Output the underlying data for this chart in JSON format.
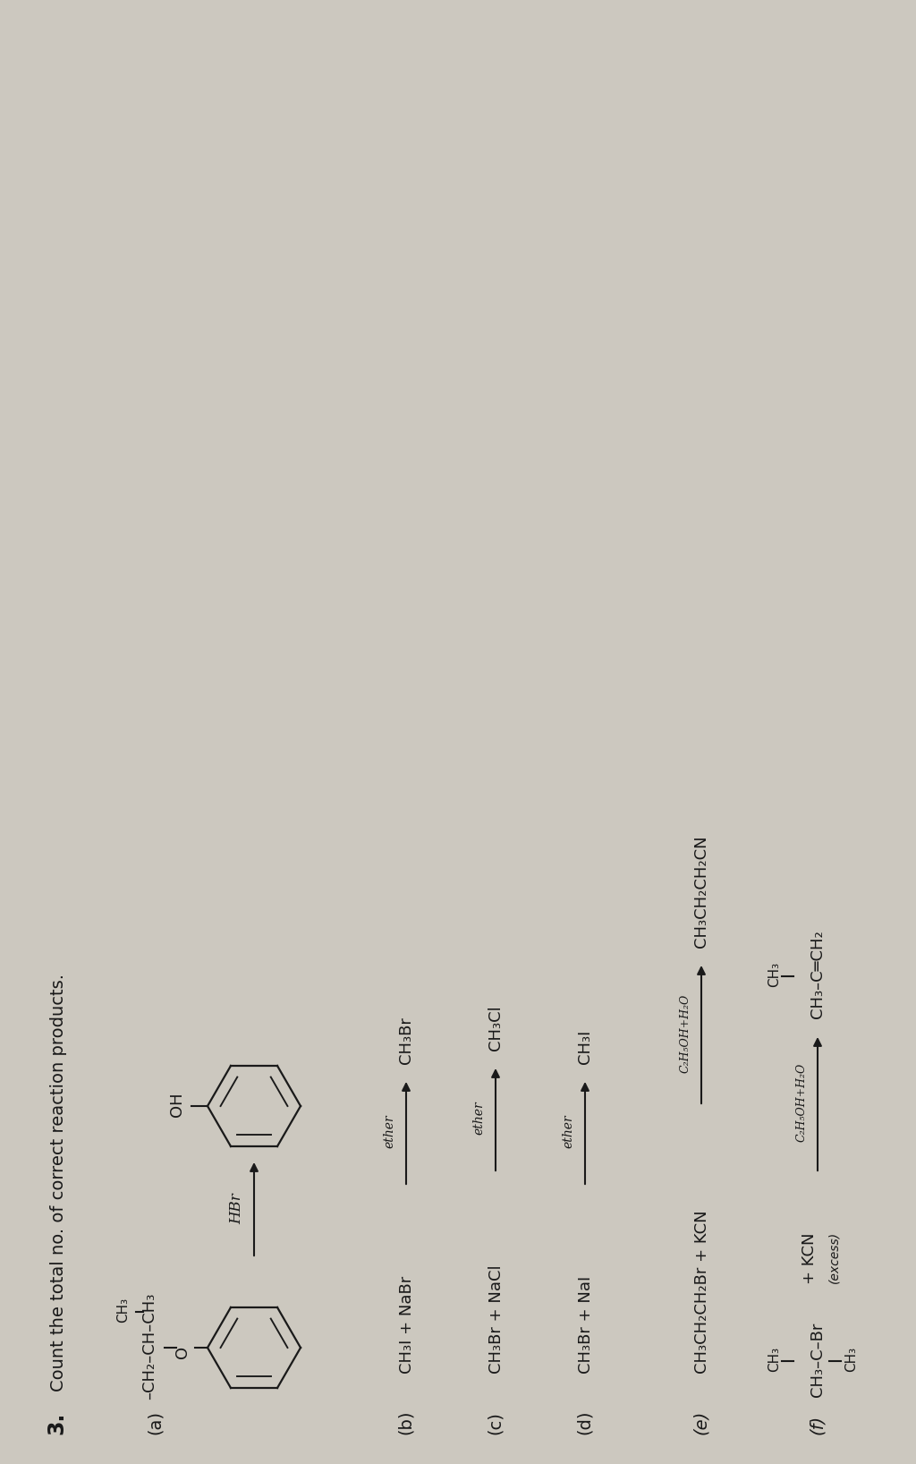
{
  "bg_color": "#ccc8bf",
  "text_color": "#1a1a1a",
  "fig_width": 10.24,
  "fig_height": 16.36,
  "title_num": "3.",
  "title_text": "Count the total no. of correct reaction products.",
  "label_a": "(a)",
  "label_b": "(b)",
  "label_c": "(c)",
  "label_d": "(d)",
  "label_e": "(e)",
  "label_f": "(f)",
  "b_reactant": "CH₃I + NaBr",
  "b_reagent": "ether",
  "b_product": "CH₃Br",
  "c_reactant": "CH₃Br + NaCl",
  "c_reagent": "ether",
  "c_product": "CH₃Cl",
  "d_reactant": "CH₃Br + NaI",
  "d_reagent": "ether",
  "d_product": "CH₃I",
  "e_reactant": "CH₃CH₂CH₂Br + KCN",
  "e_reagent": "C₂H₅OH+H₂O",
  "e_product": "CH₃CH₂CH₂CN",
  "f_r1": "CH₃",
  "f_r2": "CH₃–C–Br",
  "f_r3": "CH₃",
  "f_reagent1": "+ KCN",
  "f_reagent2": "(excess)",
  "f_cond": "C₂H₅OH+H₂O",
  "f_p1": "CH₃",
  "f_p2": "CH₃–C═CH₂",
  "f_p3": "CH₃",
  "a_chain1": "CH₃",
  "a_chain2": "CH₂–CH–CH₃",
  "a_reagent": "HBr",
  "a_oh": "OH"
}
